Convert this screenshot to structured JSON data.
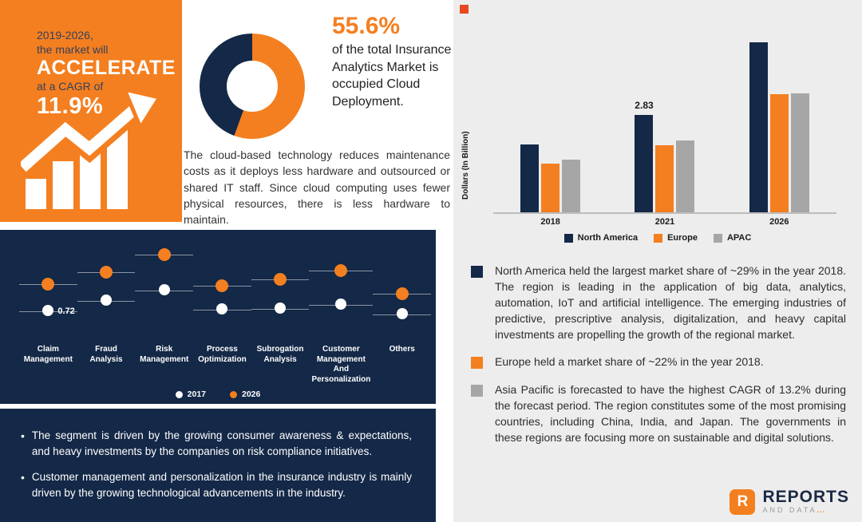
{
  "colors": {
    "orange": "#f47f20",
    "navy": "#142847",
    "gray": "#a6a6a6",
    "panel_gray": "#ededed",
    "accent_red": "#e8491e"
  },
  "promo": {
    "line1": "2019-2026,",
    "line2": "the market will",
    "line3": "ACCELERATE",
    "line4": "at a CAGR of",
    "line5": "11.9%"
  },
  "donut": {
    "percent_label": "55.6%",
    "percent_value": 55.6,
    "description": "of the total Insurance Analytics Market is occupied Cloud Deployment.",
    "paragraph": "The cloud-based technology reduces maintenance costs as it deploys less hardware and outsourced or shared IT staff. Since cloud computing uses fewer physical resources, there is less hardware to maintain."
  },
  "bullet_char": "•",
  "chart_data": [
    {
      "type": "bar",
      "ylabel": "Dollars (In Billion)",
      "categories": [
        "2018",
        "2021",
        "2026"
      ],
      "series": [
        {
          "name": "North America",
          "color": "#142847",
          "values": [
            1.97,
            2.83,
            4.92
          ]
        },
        {
          "name": "Europe",
          "color": "#f47f20",
          "values": [
            1.4,
            1.95,
            3.42
          ]
        },
        {
          "name": "APAC",
          "color": "#a6a6a6",
          "values": [
            1.53,
            2.07,
            3.45
          ]
        }
      ],
      "data_labels": [
        {
          "category": "2021",
          "series": "North America",
          "text": "2.83"
        }
      ],
      "ylim": [
        0,
        5.5
      ],
      "legend_position": "bottom",
      "grid": false
    },
    {
      "type": "scatter",
      "categories": [
        "Claim Management",
        "Fraud Analysis",
        "Risk Management",
        "Process Optimization",
        "Subrogation Analysis",
        "Customer Management And Personalization",
        "Others"
      ],
      "series": [
        {
          "name": "2017",
          "color": "#ffffff",
          "values": [
            0.72,
            1.05,
            1.35,
            0.78,
            0.8,
            0.92,
            0.62
          ]
        },
        {
          "name": "2026",
          "color": "#f47f20",
          "values": [
            1.55,
            1.9,
            2.45,
            1.5,
            1.7,
            1.95,
            1.25
          ]
        }
      ],
      "data_labels": [
        {
          "category": "Claim Management",
          "series": "2017",
          "text": "0.72"
        }
      ],
      "ylim": [
        0,
        3
      ],
      "legend_position": "bottom",
      "grid": false
    }
  ],
  "segment_notes": [
    "The segment is driven by the growing consumer awareness & expectations, and heavy investments by the companies on risk compliance initiatives.",
    "Customer management and personalization in the insurance industry is mainly driven by the growing technological advancements in the industry."
  ],
  "regional_notes": [
    {
      "color": "#142847",
      "text": "North America held the largest market share of ~29% in the year 2018. The region is leading in the application of big data, analytics, automation, IoT and artificial intelligence. The emerging industries of predictive, prescriptive analysis, digitalization, and heavy capital investments are propelling the growth of the regional market."
    },
    {
      "color": "#f47f20",
      "text": "Europe held a market share of ~22% in the year 2018."
    },
    {
      "color": "#a6a6a6",
      "text": "Asia Pacific is forecasted to have the highest CAGR of 13.2% during the forecast period. The region constitutes some of the most promising countries, including China, India, and Japan. The governments in these regions are focusing more on sustainable and digital solutions."
    }
  ],
  "logo": {
    "mark": "R",
    "main": "REPORTS",
    "sub": "AND DATA",
    "dots": "..."
  }
}
